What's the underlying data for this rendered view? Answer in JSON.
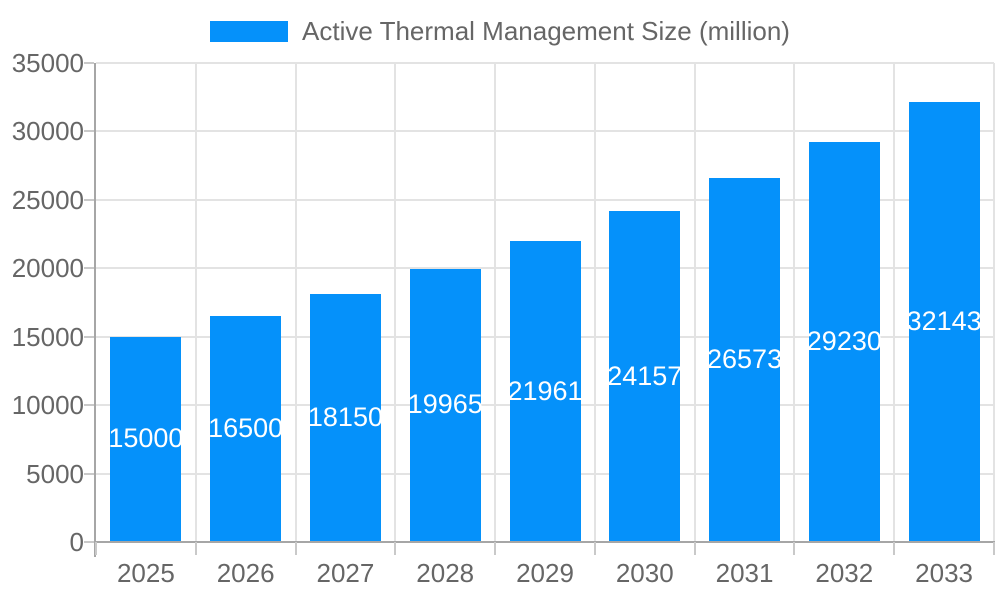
{
  "chart_data": {
    "type": "bar",
    "title": "Active Thermal Management Size (million)",
    "legend": {
      "label": "Active Thermal Management Size (million)",
      "position": "top-center"
    },
    "categories": [
      "2025",
      "2026",
      "2027",
      "2028",
      "2029",
      "2030",
      "2031",
      "2032",
      "2033"
    ],
    "values": [
      15000,
      16500,
      18150,
      19965,
      21961,
      24157,
      26573,
      29230,
      32143
    ],
    "bar_value_labels": [
      "15000",
      "16500",
      "18150",
      "19965",
      "21961",
      "24157",
      "26573",
      "29230",
      "32143"
    ],
    "xlabel": "",
    "ylabel": "",
    "ylim": [
      0,
      35000
    ],
    "yticks": [
      0,
      5000,
      10000,
      15000,
      20000,
      25000,
      30000,
      35000
    ],
    "grid": true,
    "colors": {
      "bar": "#0591fa",
      "grid": "#e3e3e3",
      "axis": "#a6a6a6",
      "tick": "#c9c9c9",
      "tick_label": "#666666",
      "legend_text": "#666666",
      "value_label": "#ffffff",
      "background": "#ffffff"
    }
  }
}
